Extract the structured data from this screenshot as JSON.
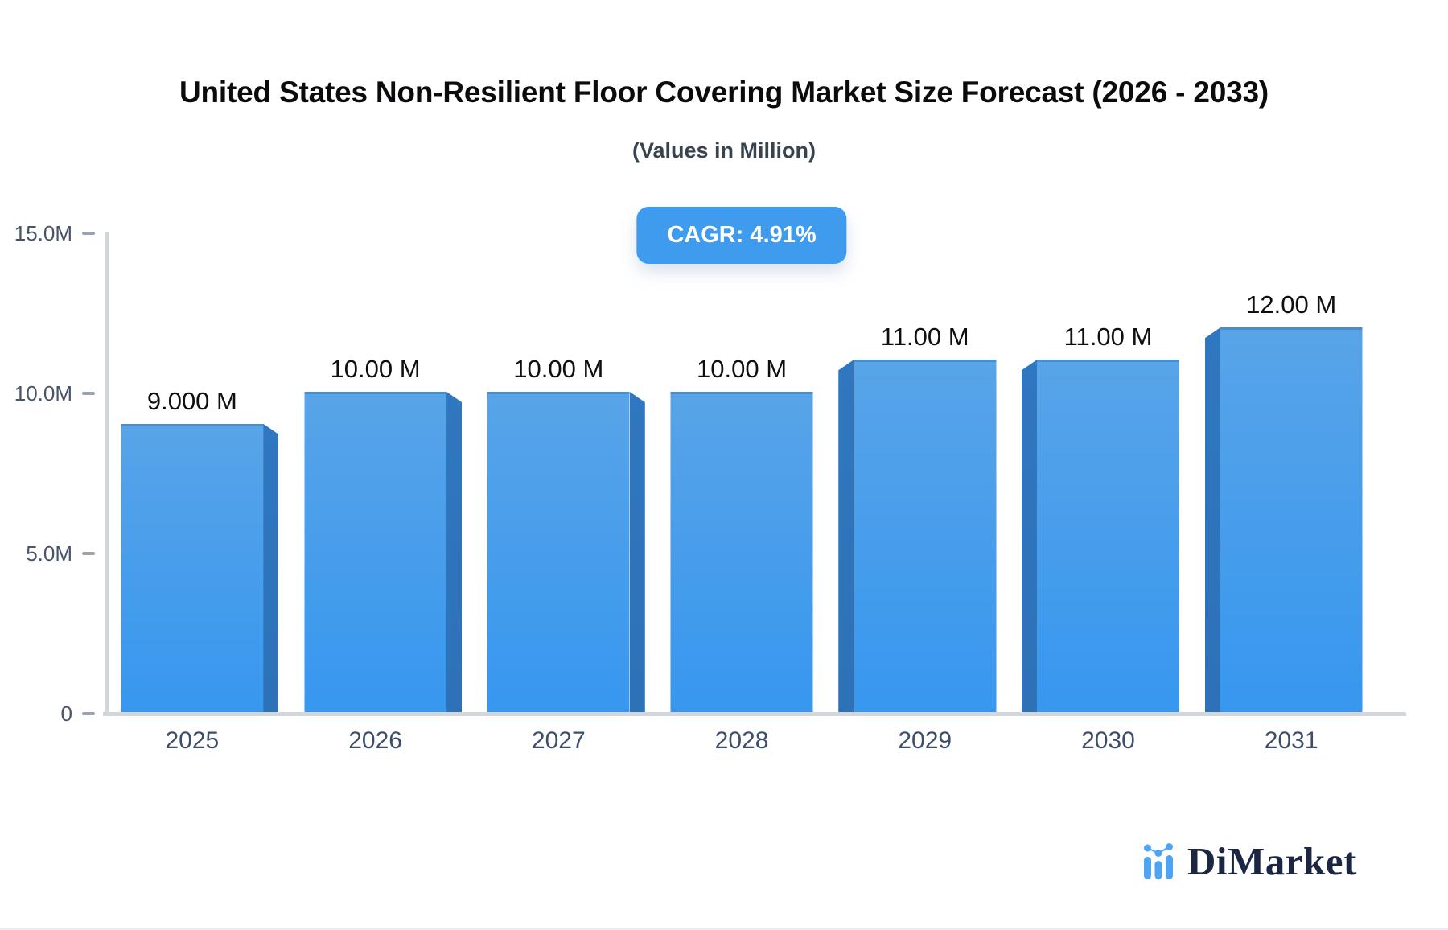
{
  "title": "United States Non-Resilient Floor Covering Market Size Forecast (2026 - 2033)",
  "subtitle": "(Values in Million)",
  "cagr_badge": "CAGR: 4.91%",
  "brand": {
    "name": "DiMarket",
    "icon": "mini-bar-chart-logo-icon"
  },
  "colors": {
    "title": "#0b0b0d",
    "subtitle": "#39434e",
    "badge_bg": "#3f9bee",
    "badge_text": "#ffffff",
    "bar_face_top": "#58a4e8",
    "bar_face_bottom": "#3797ef",
    "bar_top_edge": "#4a8ed2",
    "bar_bevel_top": "#2f77c0",
    "bar_bevel_bottom": "#2d72b7",
    "axis_line": "#d3d7dc",
    "tick_dash": "#9ba3ae",
    "y_label": "#475469",
    "x_label": "#3e4d68",
    "value_label": "#0f0f12",
    "logo_blue": "#4da4f5",
    "logo_text": "#1b2742"
  },
  "chart_data": {
    "type": "bar",
    "categories": [
      "2025",
      "2026",
      "2027",
      "2028",
      "2029",
      "2030",
      "2031"
    ],
    "values": [
      9,
      10,
      10,
      10,
      11,
      11,
      12
    ],
    "value_labels": [
      "9.000 M",
      "10.00 M",
      "10.00 M",
      "10.00 M",
      "11.00 M",
      "11.00 M",
      "12.00 M"
    ],
    "title": "United States Non-Resilient Floor Covering Market Size Forecast (2026 - 2033)",
    "subtitle": "(Values in Million)",
    "xlabel": "",
    "ylabel": "",
    "ylim": [
      0,
      15
    ],
    "yticks": [
      {
        "value": 15,
        "label": "15.0M"
      },
      {
        "value": 10,
        "label": "10.0M"
      },
      {
        "value": 5,
        "label": "5.0M"
      },
      {
        "value": 0,
        "label": "0"
      }
    ],
    "grid": false,
    "legend": false,
    "annotations": [
      "CAGR: 4.91%"
    ]
  }
}
